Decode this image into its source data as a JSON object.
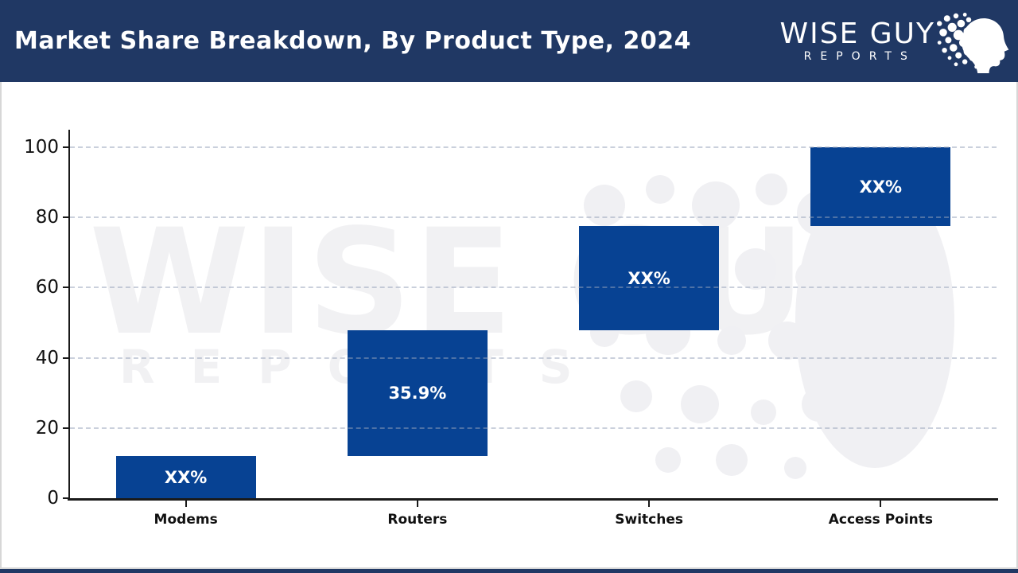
{
  "header": {
    "title": "Market Share Breakdown, By Product Type, 2024",
    "logo": {
      "line1": "WISE GUY",
      "line2": "REPORTS"
    }
  },
  "watermark": {
    "line1": "WISE GUY",
    "line2": "REPORTS"
  },
  "chart_data": {
    "type": "bar",
    "subtype": "waterfall",
    "title": "Market Share Breakdown, By Product Type, 2024",
    "categories": [
      "Modems",
      "Routers",
      "Switches",
      "Access Points"
    ],
    "series": [
      {
        "name": "Market share (%)",
        "bases": [
          0,
          12,
          47.9,
          77.5
        ],
        "tops": [
          12,
          47.9,
          77.5,
          100
        ]
      }
    ],
    "bar_labels": [
      "XX%",
      "35.9%",
      "XX%",
      "XX%"
    ],
    "xlabel": "",
    "ylabel": "",
    "ylim": [
      0,
      100
    ],
    "yticks": [
      0,
      20,
      40,
      60,
      80,
      100
    ],
    "grid": "horizontal-dashed",
    "legend": "none"
  },
  "colors": {
    "header_bg": "#203864",
    "footer_bg": "#203864",
    "bar": "#074293",
    "axis": "#1a1a1a",
    "grid": "rgba(150,162,185,0.5)",
    "watermark": "#f1f1f3",
    "bar_label_text": "#ffffff",
    "title_text": "#ffffff"
  }
}
